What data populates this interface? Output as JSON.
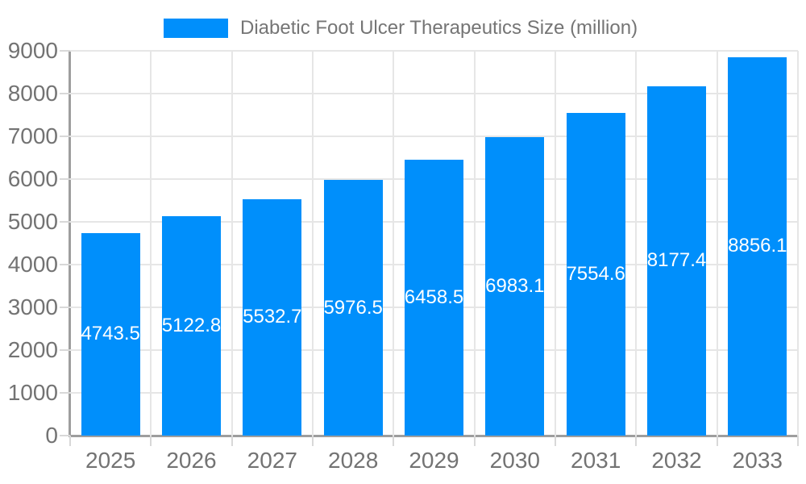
{
  "chart_data": {
    "type": "bar",
    "title": "Diabetic Foot Ulcer Therapeutics Size (million)",
    "legend_position": "top",
    "categories": [
      "2025",
      "2026",
      "2027",
      "2028",
      "2029",
      "2030",
      "2031",
      "2032",
      "2033"
    ],
    "series": [
      {
        "name": "Diabetic Foot Ulcer Therapeutics Size (million)",
        "values": [
          4743.5,
          5122.8,
          5532.7,
          5976.5,
          6458.5,
          6983.1,
          7554.6,
          8177.4,
          8856.1
        ],
        "value_labels": [
          "4743.5",
          "5122.8",
          "5532.7",
          "5976.5",
          "6458.5",
          "6983.1",
          "7554.6",
          "8177.4",
          "8856.1"
        ]
      }
    ],
    "xlabel": "",
    "ylabel": "",
    "ylim": [
      0,
      9000
    ],
    "y_ticks": [
      0,
      1000,
      2000,
      3000,
      4000,
      5000,
      6000,
      7000,
      8000,
      9000
    ],
    "grid": {
      "horizontal": true,
      "vertical": true
    },
    "colors": {
      "bar": "#008ffb",
      "value_label": "#ffffff",
      "axis_label": "#737373",
      "legend_label": "#757575",
      "grid_line": "#e6e6e6",
      "tick": "#d8d8d8",
      "axis_line": "#9e9e9e",
      "background": "#ffffff"
    }
  }
}
